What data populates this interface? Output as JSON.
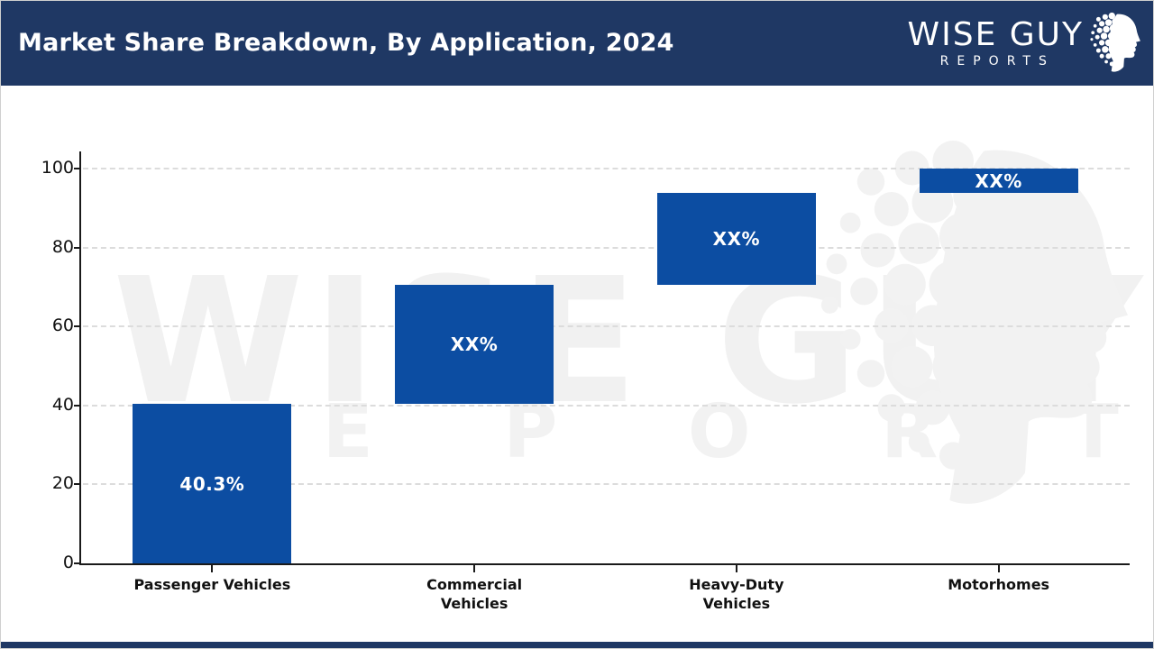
{
  "header": {
    "title": "Market Share Breakdown, By Application, 2024",
    "background": "#1F3864",
    "logo": {
      "line1": "WISE GUY",
      "line2": "REPORTS"
    }
  },
  "watermark": {
    "line1": "WISE GUY",
    "line2": "R E P O R T S"
  },
  "footer": {
    "background": "#1F3864"
  },
  "chart_data": {
    "type": "bar",
    "subtype": "waterfall-floating-bars",
    "title": "Market Share Breakdown, By Application, 2024",
    "categories": [
      "Passenger Vehicles",
      "Commercial\nVehicles",
      "Heavy-Duty\nVehicles",
      "Motorhomes"
    ],
    "series": [
      {
        "name": "Market Share",
        "segments": [
          {
            "category": "Passenger Vehicles",
            "start": 0,
            "end": 40.3,
            "label": "40.3%"
          },
          {
            "category": "Commercial Vehicles",
            "start": 40.3,
            "end": 70.5,
            "label": "XX%"
          },
          {
            "category": "Heavy-Duty Vehicles",
            "start": 70.5,
            "end": 93.8,
            "label": "XX%"
          },
          {
            "category": "Motorhomes",
            "start": 93.8,
            "end": 100,
            "label": "XX%"
          }
        ]
      }
    ],
    "xlabel": "",
    "ylabel": "",
    "ylim": [
      0,
      100
    ],
    "yticks": [
      0,
      20,
      40,
      60,
      80,
      100
    ],
    "grid": "horizontal-dashed",
    "legend": "none",
    "bar_color": "#0C4DA2",
    "bar_label_color": "#FFFFFF",
    "axis_color": "#1A1A1A",
    "gridline_color": "#DCDCDC"
  }
}
